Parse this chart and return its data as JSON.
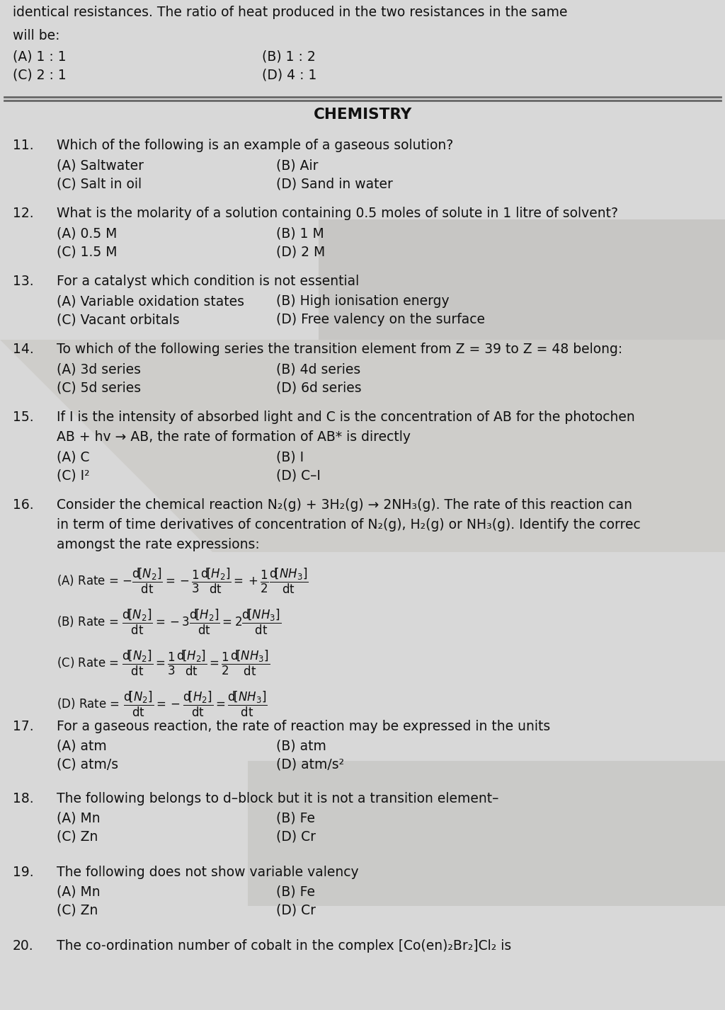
{
  "bg_top": "#b8b8b8",
  "bg_page": "#d8d8d8",
  "bg_light": "#e8e6e2",
  "text_color": "#111111",
  "title": "CHEMISTRY",
  "line_color": "#666666",
  "header_line1": "identical resistances. The ratio of heat produced in the two resistances in the same",
  "header_line2": "will be:",
  "h_A": "(A) 1 : 1",
  "h_B": "(B) 1 : 2",
  "h_C": "(C) 2 : 1",
  "h_D": "(D) 4 : 1",
  "q11_q": "Which of the following is an example of a gaseous solution?",
  "q11_A": "(A) Saltwater",
  "q11_B": "(B) Air",
  "q11_C": "(C) Salt in oil",
  "q11_D": "(D) Sand in water",
  "q12_q": "What is the molarity of a solution containing 0.5 moles of solute in 1 litre of solvent?",
  "q12_A": "(A) 0.5 M",
  "q12_B": "(B) 1 M",
  "q12_C": "(C) 1.5 M",
  "q12_D": "(D) 2 M",
  "q13_q": "For a catalyst which condition is not essential",
  "q13_A": "(A) Variable oxidation states",
  "q13_B": "(B) High ionisation energy",
  "q13_C": "(C) Vacant orbitals",
  "q13_D": "(D) Free valency on the surface",
  "q14_q": "To which of the following series the transition element from Z = 39 to Z = 48 belong:",
  "q14_A": "(A) 3d series",
  "q14_B": "(B) 4d series",
  "q14_C": "(C) 5d series",
  "q14_D": "(D) 6d series",
  "q15_q1": "If I is the intensity of absorbed light and C is the concentration of AB for the photochen",
  "q15_q2": "AB + hv → AB, the rate of formation of AB* is directly",
  "q15_A": "(A) C",
  "q15_B": "(B) I",
  "q15_C": "(C) I²",
  "q15_D": "(D) C–I",
  "q16_q1": "Consider the chemical reaction N₂(g) + 3H₂(g) → 2NH₃(g). The rate of this reaction can",
  "q16_q2": "in term of time derivatives of concentration of N₂(g), H₂(g) or NH₃(g). Identify the correc",
  "q16_q3": "amongst the rate expressions:",
  "q17_q": "For a gaseous reaction, the rate of reaction may be expressed in the units",
  "q17_A": "(A) atm",
  "q17_B": "(B) atm",
  "q17_C": "(C) atm/s",
  "q17_D": "(D) atm/s²",
  "q18_q": "The following belongs to d–block but it is not a transition element–",
  "q18_A": "(A) Mn",
  "q18_B": "(B) Fe",
  "q18_C": "(C) Zn",
  "q18_D": "(D) Cr",
  "q19_q": "The following does not show variable valency",
  "q19_A": "(A) Mn",
  "q19_B": "(B) Fe",
  "q19_C": "(C) Zn",
  "q19_D": "(D) Cr",
  "q20_q": "The co-ordination number of cobalt in the complex [Co(en)₂Br₂]Cl₂ is"
}
